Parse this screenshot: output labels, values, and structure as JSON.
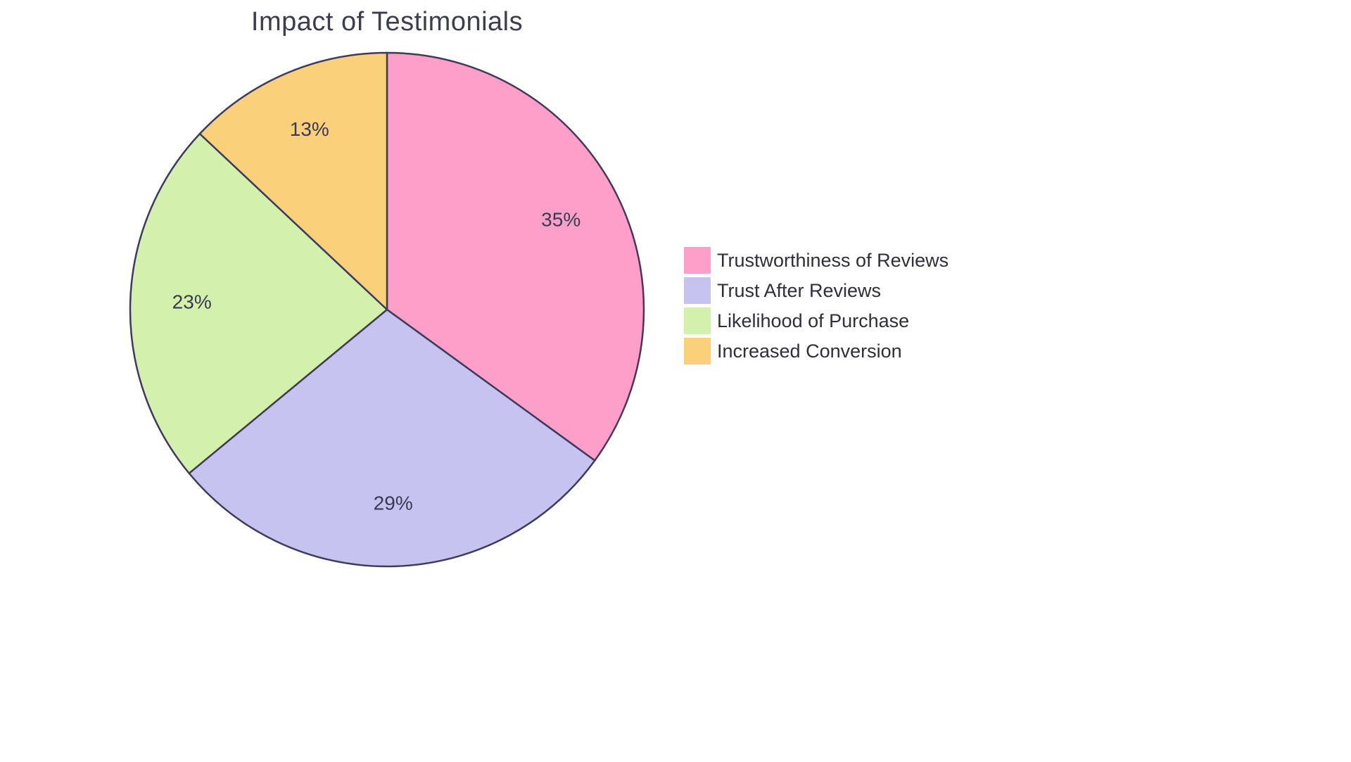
{
  "title": "Impact of Testimonials",
  "background_color": "#ffffff",
  "chart_data": {
    "type": "pie",
    "title": "Impact of Testimonials",
    "categories": [
      "Trustworthiness of Reviews",
      "Trust After Reviews",
      "Likelihood of Purchase",
      "Increased Conversion"
    ],
    "values": [
      35,
      29,
      23,
      13
    ],
    "slice_labels": [
      "35%",
      "29%",
      "23%",
      "13%"
    ],
    "unit": "%",
    "colors": [
      "#fe9fc9",
      "#c6c3f1",
      "#d3f0ad",
      "#fad07a"
    ],
    "stroke_color": "#3e3b5b",
    "label_color": "#3b3a52",
    "title_color": "#3d3d50",
    "legend_position": "right",
    "start_angle_deg": 0,
    "direction": "clockwise"
  }
}
